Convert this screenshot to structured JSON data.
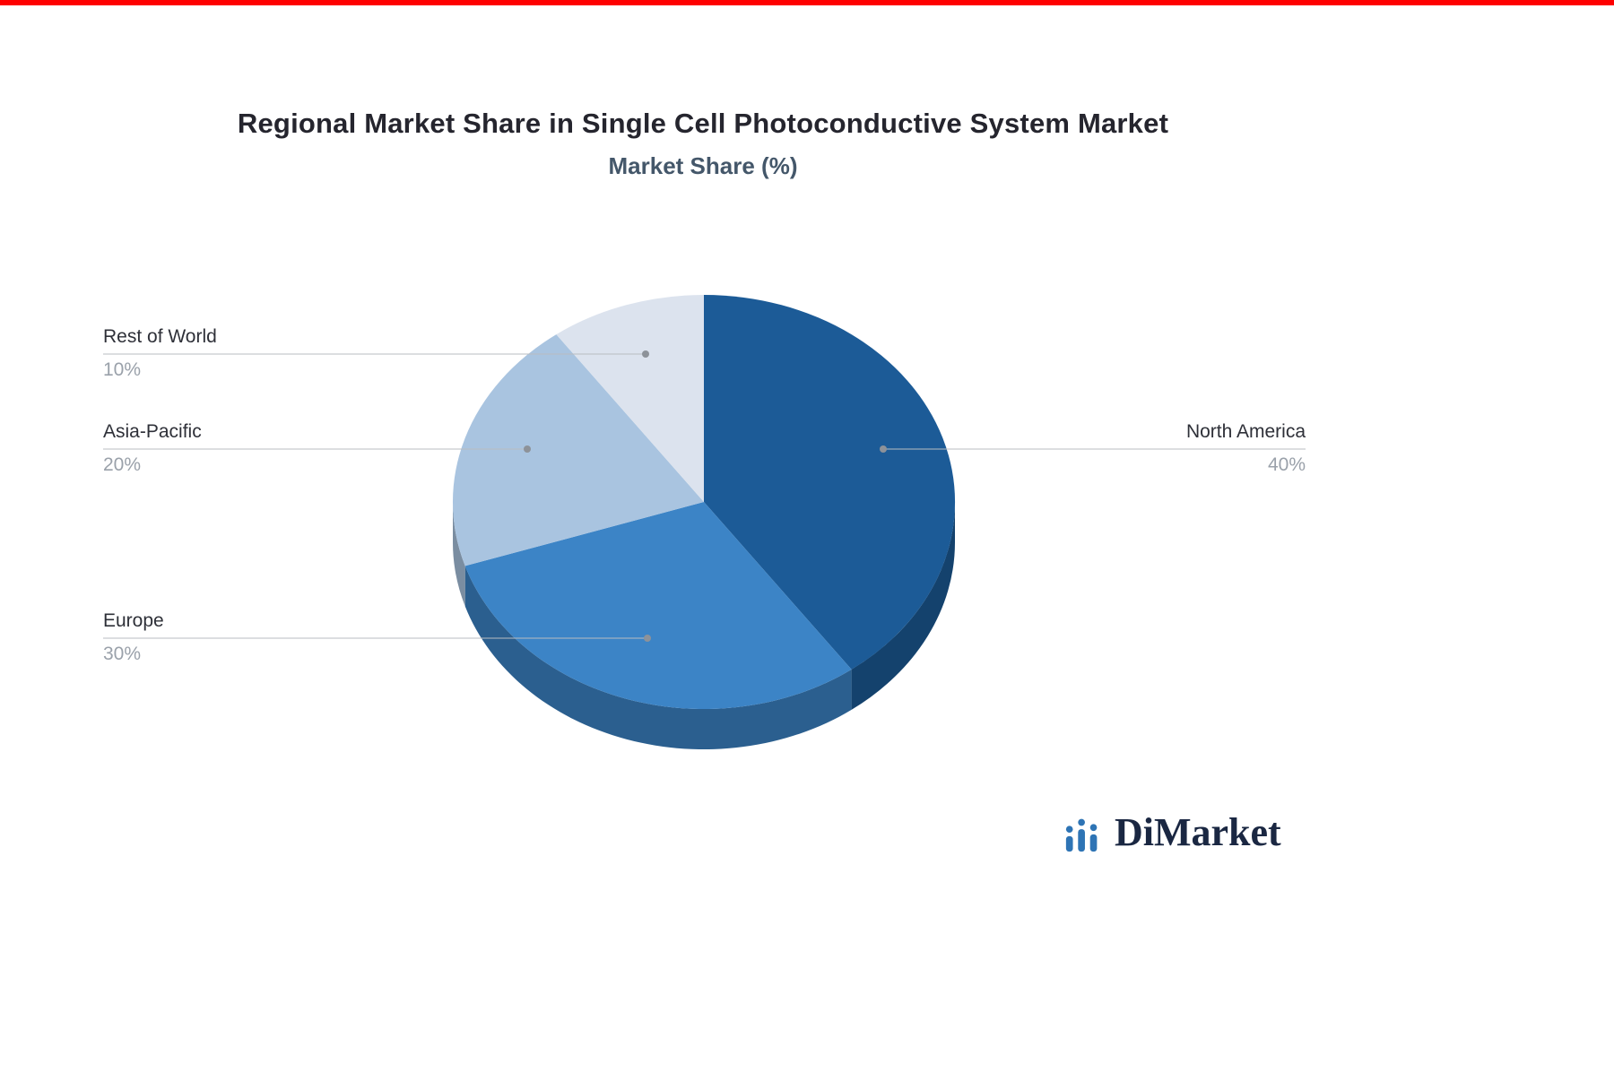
{
  "chart_data": {
    "type": "pie",
    "title": "Regional Market Share in Single Cell Photoconductive System Market",
    "subtitle": "Market Share (%)",
    "unit": "%",
    "style": "3d",
    "start_angle": "top",
    "direction": "clockwise",
    "legend_position": "none",
    "categories": [
      "North America",
      "Europe",
      "Asia-Pacific",
      "Rest of World"
    ],
    "values": [
      40,
      30,
      20,
      10
    ],
    "slices": [
      {
        "label": "North America",
        "value": 40,
        "value_label": "40%",
        "color": "#1c5b97",
        "label_side": "right"
      },
      {
        "label": "Europe",
        "value": 30,
        "value_label": "30%",
        "color": "#3c84c6",
        "label_side": "left"
      },
      {
        "label": "Asia-Pacific",
        "value": 20,
        "value_label": "20%",
        "color": "#a9c4e0",
        "label_side": "left"
      },
      {
        "label": "Rest of World",
        "value": 10,
        "value_label": "10%",
        "color": "#dce3ee",
        "label_side": "left"
      }
    ]
  },
  "branding": {
    "logo_text": "DiMarket",
    "logo_icon": "bar-chart-icon",
    "logo_icon_color": "#2e74b5",
    "logo_text_color": "#1a2742"
  },
  "decor": {
    "top_strip_color": "#fe0000",
    "leader_line_color": "#b9bcc0",
    "leader_dot_color": "#8d9299"
  }
}
